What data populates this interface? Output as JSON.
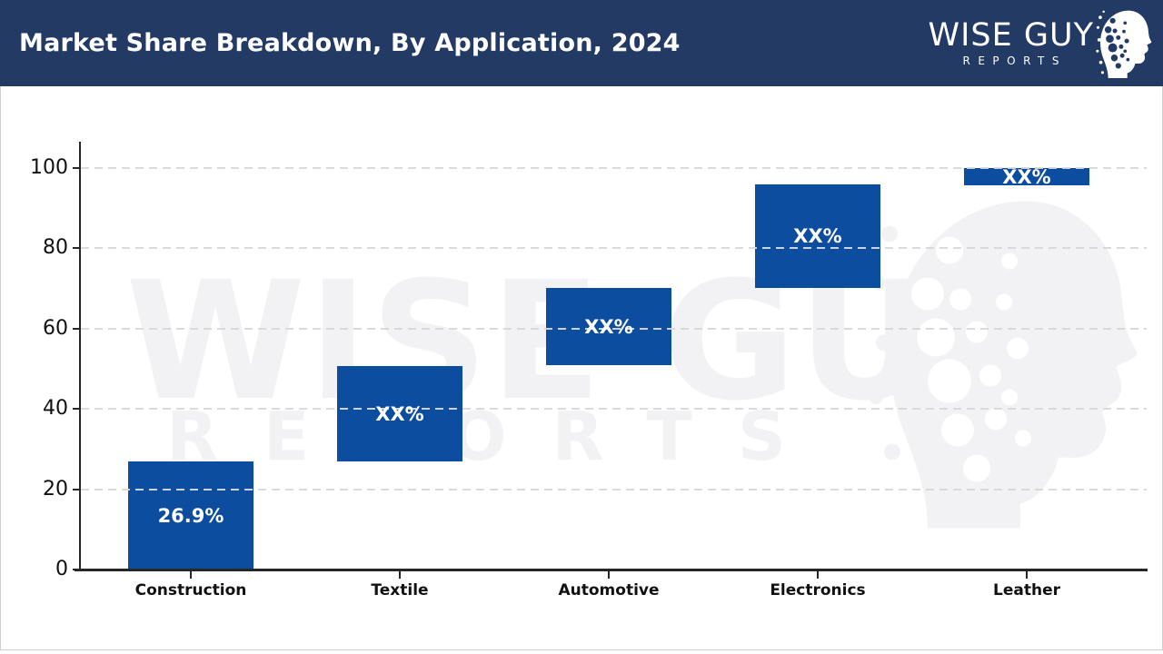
{
  "header": {
    "title": "Market Share Breakdown, By Application, 2024",
    "logo": {
      "primary": "WISE GUY",
      "secondary": "REPORTS"
    }
  },
  "watermark": {
    "primary": "WISE GUY",
    "secondary": "REPORTS"
  },
  "colors": {
    "header_bg": "#223A64",
    "bar_blue": "#0D4DA0",
    "grid_line": "#D8D8D8",
    "axis": "#262626",
    "watermark_gray": "#F2F2F4",
    "bar_label_white": "#FFFFFF",
    "frame_border": "#CFCFCF"
  },
  "chart_data": {
    "type": "bar",
    "variant": "floating-waterfall",
    "title": "Market Share Breakdown, By Application, 2024",
    "categories": [
      "Construction",
      "Textile",
      "Automotive",
      "Electronics",
      "Leather"
    ],
    "bars": [
      {
        "category": "Construction",
        "start": 0,
        "end": 26.9,
        "label": "26.9%"
      },
      {
        "category": "Textile",
        "start": 26.9,
        "end": 50.6,
        "label": "XX%"
      },
      {
        "category": "Automotive",
        "start": 50.8,
        "end": 70.1,
        "label": "XX%"
      },
      {
        "category": "Electronics",
        "start": 70.1,
        "end": 95.9,
        "label": "XX%"
      },
      {
        "category": "Leather",
        "start": 95.7,
        "end": 100,
        "label": "XX%"
      }
    ],
    "ylim": [
      0,
      100
    ],
    "yticks": [
      0,
      20,
      40,
      60,
      80,
      100
    ],
    "grid": "horizontal-dashed",
    "legend": false,
    "xlabel": "",
    "ylabel": ""
  }
}
